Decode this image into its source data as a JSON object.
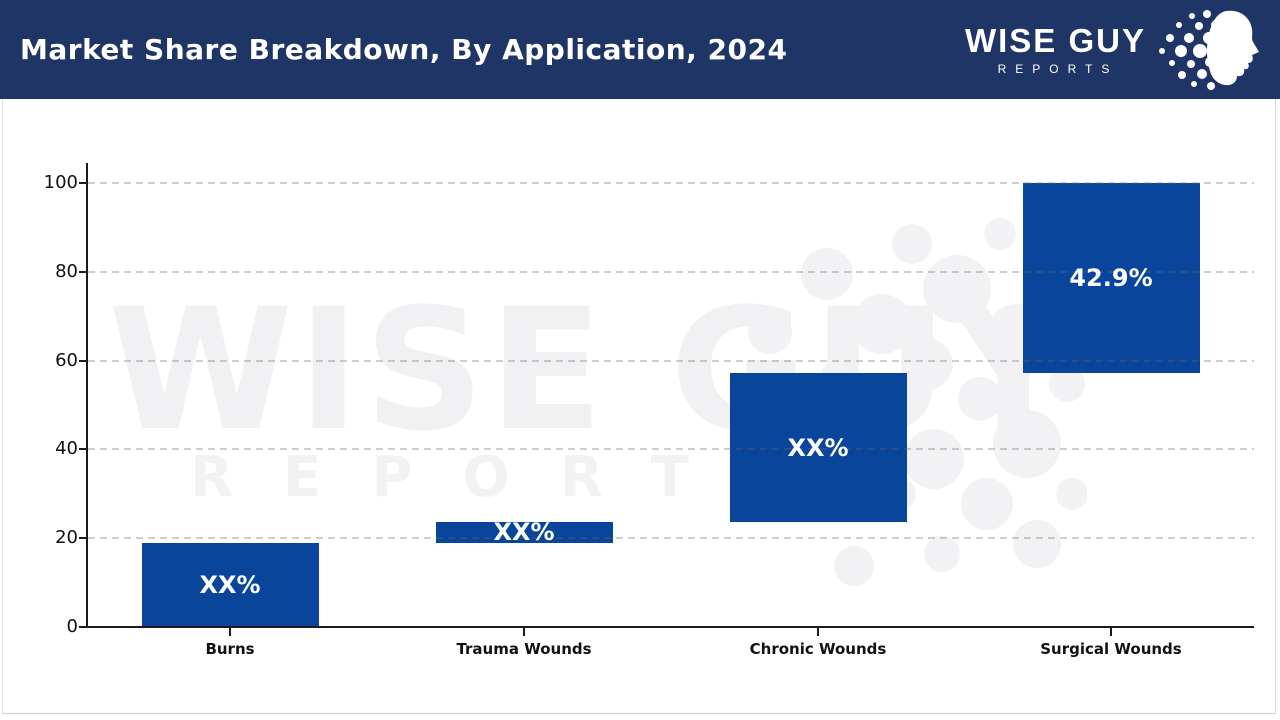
{
  "header": {
    "title": "Market Share Breakdown, By Application, 2024",
    "logo": {
      "wordmark": "WISE GUY",
      "subtext": "REPORTS"
    }
  },
  "watermark": {
    "line1": "WISE GUY",
    "line2": "REPORTS"
  },
  "chart_data": {
    "type": "bar",
    "subtype": "floating-segment-waterfall",
    "title": "Market Share Breakdown, By Application, 2024",
    "categories": [
      "Burns",
      "Trauma Wounds",
      "Chronic Wounds",
      "Surgical Wounds"
    ],
    "segments": [
      {
        "category": "Burns",
        "start": 0,
        "end": 19,
        "label": "XX%"
      },
      {
        "category": "Trauma Wounds",
        "start": 19,
        "end": 23.6,
        "label": "XX%"
      },
      {
        "category": "Chronic Wounds",
        "start": 23.6,
        "end": 57.1,
        "label": "XX%"
      },
      {
        "category": "Surgical Wounds",
        "start": 57.1,
        "end": 100,
        "label": "42.9%"
      }
    ],
    "xlabel": "",
    "ylabel": "",
    "yticks": [
      0,
      20,
      40,
      60,
      80,
      100
    ],
    "ylim": [
      0,
      104.5
    ],
    "grid": "horizontal-dashed",
    "legend": "none",
    "bar_color": "#09459b",
    "bar_label_color": "#ffffff",
    "axis_color": "#1a1a1a",
    "grid_color": "#d6d6d6",
    "header_color": "#1f3565",
    "watermark_color": "#f1f1f3"
  }
}
